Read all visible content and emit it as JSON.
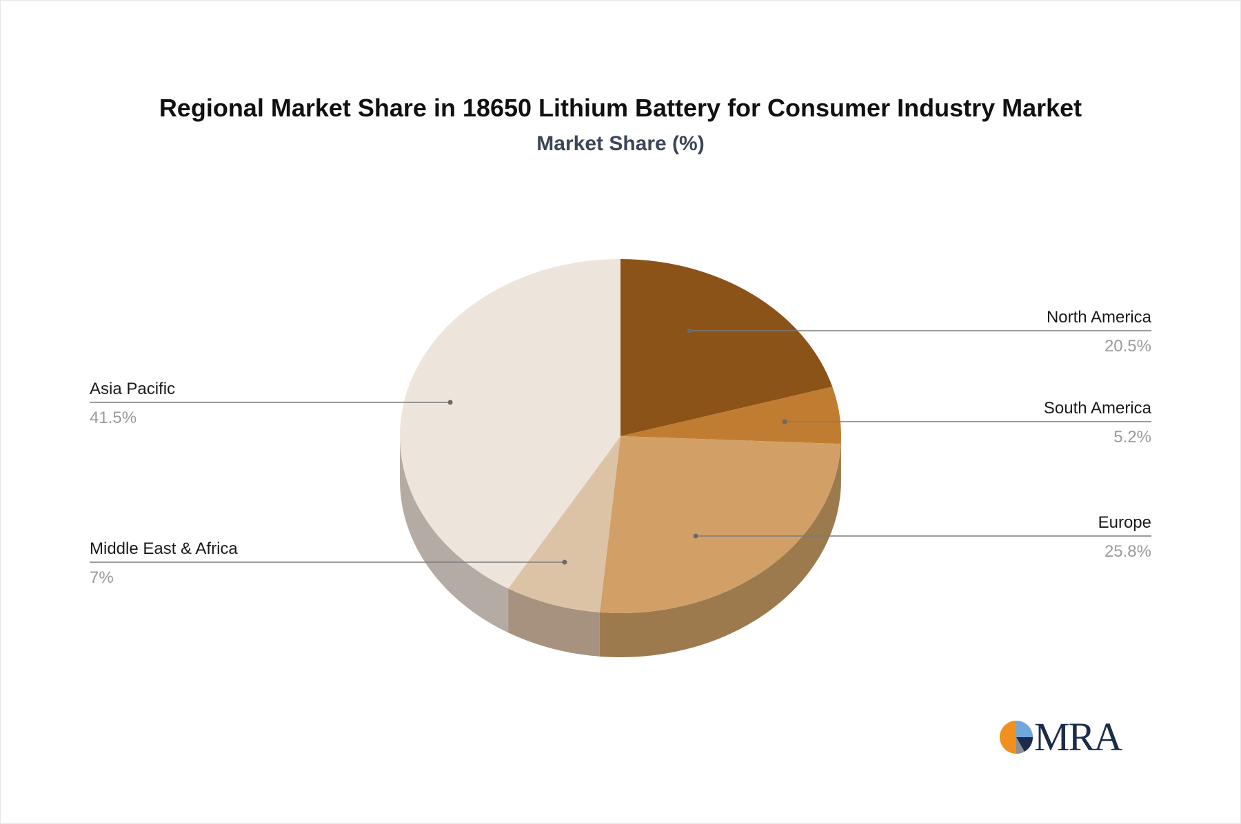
{
  "chart_data": {
    "type": "pie",
    "title": "Regional Market Share in 18650 Lithium Battery for Consumer Industry Market",
    "subtitle": "Market Share (%)",
    "slices": [
      {
        "name": "North America",
        "value": 20.5,
        "label": "20.5%",
        "color": "#8b5318",
        "side_color": "#6b4012",
        "side": "right"
      },
      {
        "name": "South America",
        "value": 5.2,
        "label": "5.2%",
        "color": "#c07d31",
        "side_color": "#956026",
        "side": "right"
      },
      {
        "name": "Europe",
        "value": 25.8,
        "label": "25.8%",
        "color": "#d2a066",
        "side_color": "#9c7a4d",
        "side": "right"
      },
      {
        "name": "Middle East & Africa",
        "value": 7,
        "label": "7%",
        "color": "#ddc3a6",
        "side_color": "#a6927e",
        "side": "left"
      },
      {
        "name": "Asia Pacific",
        "value": 41.5,
        "label": "41.5%",
        "color": "#ede4db",
        "side_color": "#b4aba4",
        "side": "left"
      }
    ]
  },
  "logo": {
    "text": "MRA",
    "colors": {
      "orange": "#f0901e",
      "navy": "#1c2b4a",
      "blue": "#6fa8dc"
    }
  }
}
